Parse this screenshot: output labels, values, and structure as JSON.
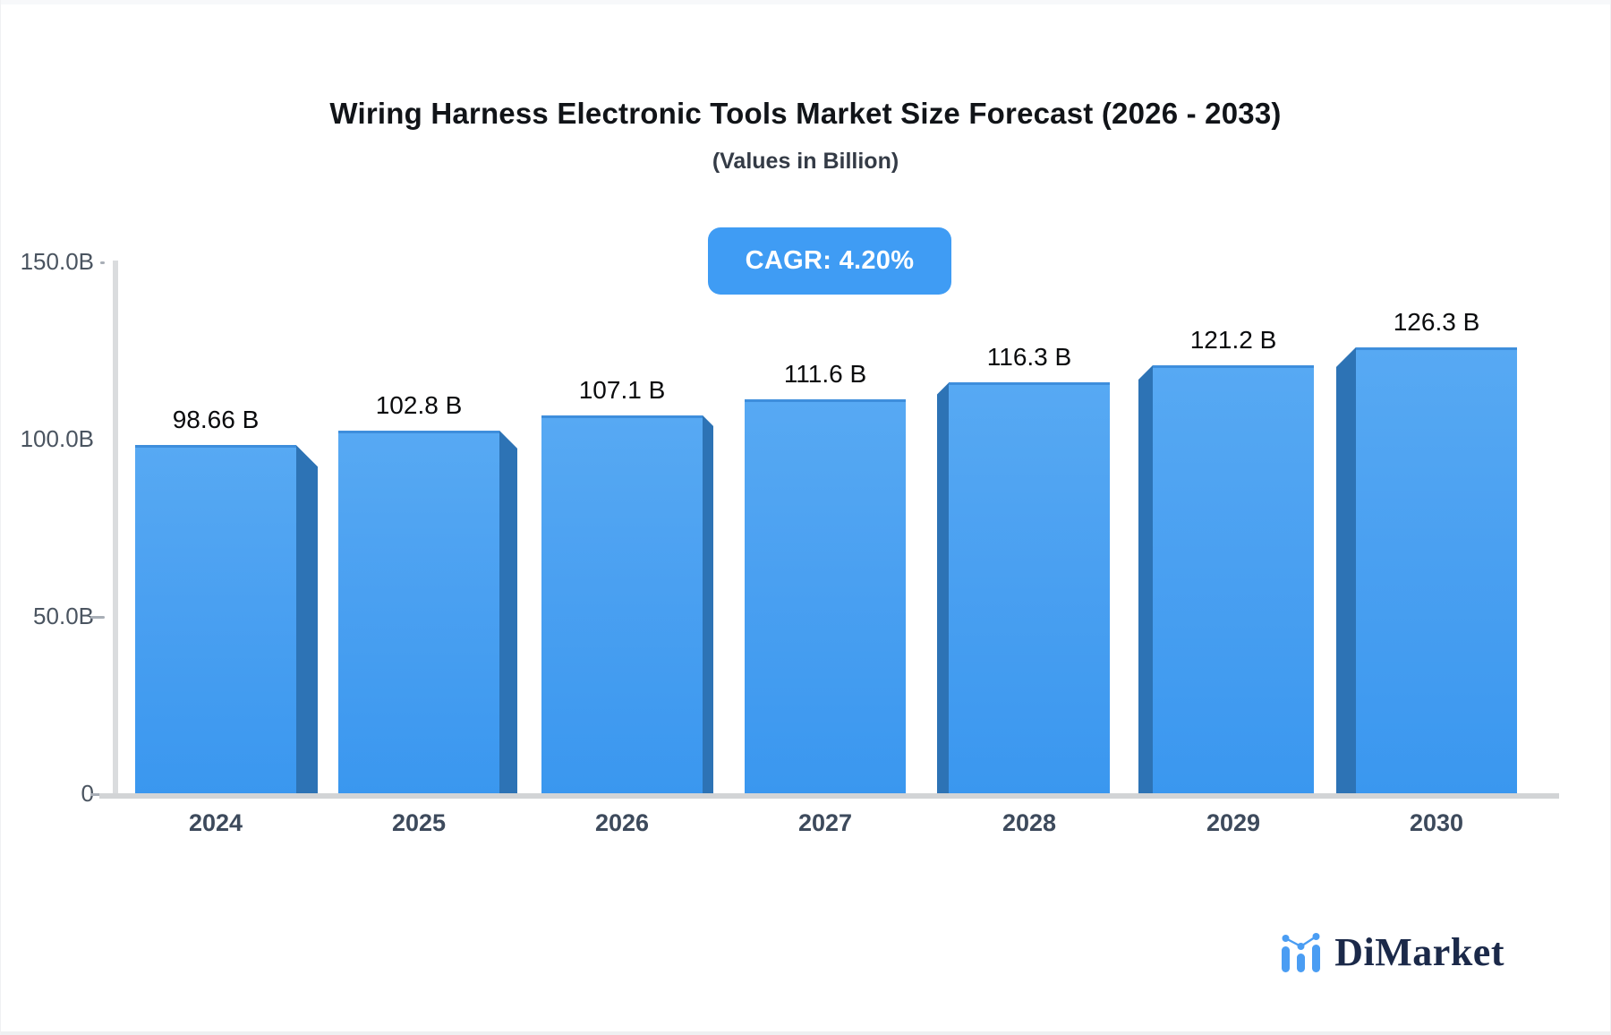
{
  "header": {
    "title": "Wiring Harness Electronic Tools Market Size Forecast (2026 - 2033)",
    "subtitle": "(Values in Billion)",
    "cagr_badge": "CAGR: 4.20%"
  },
  "brand": {
    "name": "DiMarket",
    "icon": "bar-line-chart-icon",
    "icon_color": "#4a9df3",
    "text_color": "#1b2949"
  },
  "colors": {
    "bar_face_top": "#57a9f3",
    "bar_face_bottom": "#3a97ef",
    "bar_top_edge": "#3e8edc",
    "bar_side": "#2d73b5",
    "badge_bg": "#3f9cf4",
    "axis_line": "#d2d4d6",
    "tick_text": "#4a5460",
    "year_text": "#3d4a5c",
    "value_text": "#0a0b0d"
  },
  "chart_data": {
    "type": "bar",
    "title": "Wiring Harness Electronic Tools Market Size Forecast (2026 - 2033)",
    "subtitle": "(Values in Billion)",
    "annotation": "CAGR: 4.20%",
    "categories": [
      "2024",
      "2025",
      "2026",
      "2027",
      "2028",
      "2029",
      "2030"
    ],
    "values": [
      98.66,
      102.8,
      107.1,
      111.6,
      116.3,
      121.2,
      126.3
    ],
    "value_labels": [
      "98.66 B",
      "102.8 B",
      "107.1 B",
      "111.6 B",
      "116.3 B",
      "121.2 B",
      "126.3 B"
    ],
    "unit": "Billion",
    "xlabel": "",
    "ylabel": "",
    "ylim": [
      0,
      150
    ],
    "grid": false,
    "legend": "none",
    "effect_3d": true,
    "y_ticks": [
      {
        "label": "150.0B",
        "value": 150,
        "dash": 5
      },
      {
        "label": "100.0B",
        "value": 100,
        "dash": 0
      },
      {
        "label": "50.0B",
        "value": 50,
        "dash": 16
      },
      {
        "label": "0",
        "value": 0,
        "dash": 16
      }
    ]
  }
}
